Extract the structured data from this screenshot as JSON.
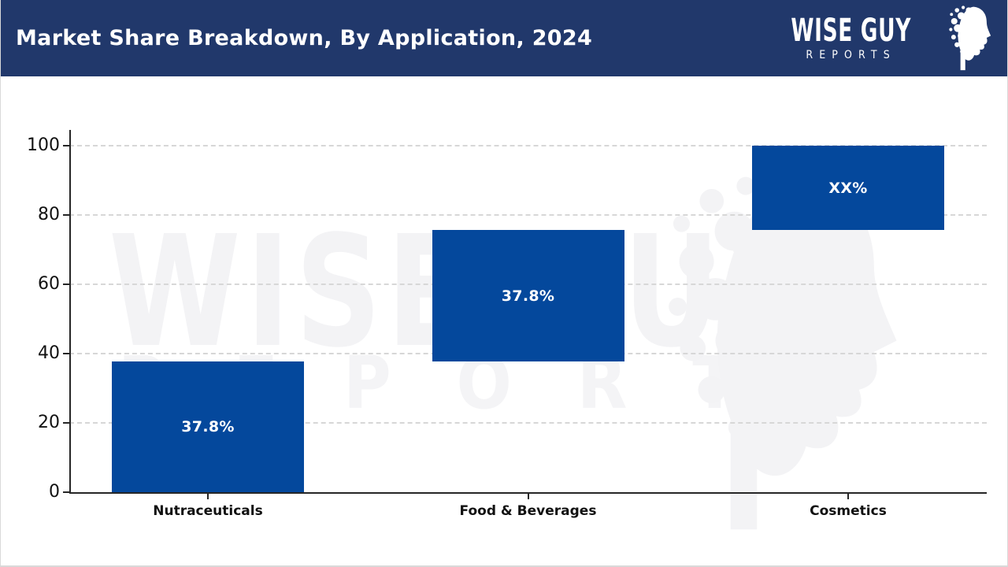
{
  "header": {
    "title": "Market Share Breakdown, By Application, 2024",
    "logo": {
      "line1": "WISE GUY",
      "line2": "REPORTS"
    }
  },
  "watermark": {
    "line1": "WISE GUY",
    "line2": "R E P O R T S"
  },
  "chart_data": {
    "type": "bar",
    "subtype": "waterfall",
    "title": "Market Share Breakdown, By Application, 2024",
    "categories": [
      "Nutraceuticals",
      "Food & Beverages",
      "Cosmetics"
    ],
    "bars": [
      {
        "category": "Nutraceuticals",
        "start": 0,
        "end": 37.8,
        "label": "37.8%"
      },
      {
        "category": "Food & Beverages",
        "start": 37.8,
        "end": 75.6,
        "label": "37.8%"
      },
      {
        "category": "Cosmetics",
        "start": 75.6,
        "end": 100,
        "label": "XX%"
      }
    ],
    "yticks": [
      0,
      20,
      40,
      60,
      80,
      100
    ],
    "ylim": [
      0,
      104.5
    ],
    "xlabel": "",
    "ylabel": "",
    "grid": "horizontal-dashed",
    "legend": "none",
    "bar_color": "#04489c"
  },
  "colors": {
    "header_bg": "#21386b",
    "bar": "#04489c",
    "axis": "#262626",
    "grid": "#d7d7d7",
    "watermark": "#f3f3f5",
    "bar_label_text": "#ffffff",
    "tick_text": "#111111"
  }
}
